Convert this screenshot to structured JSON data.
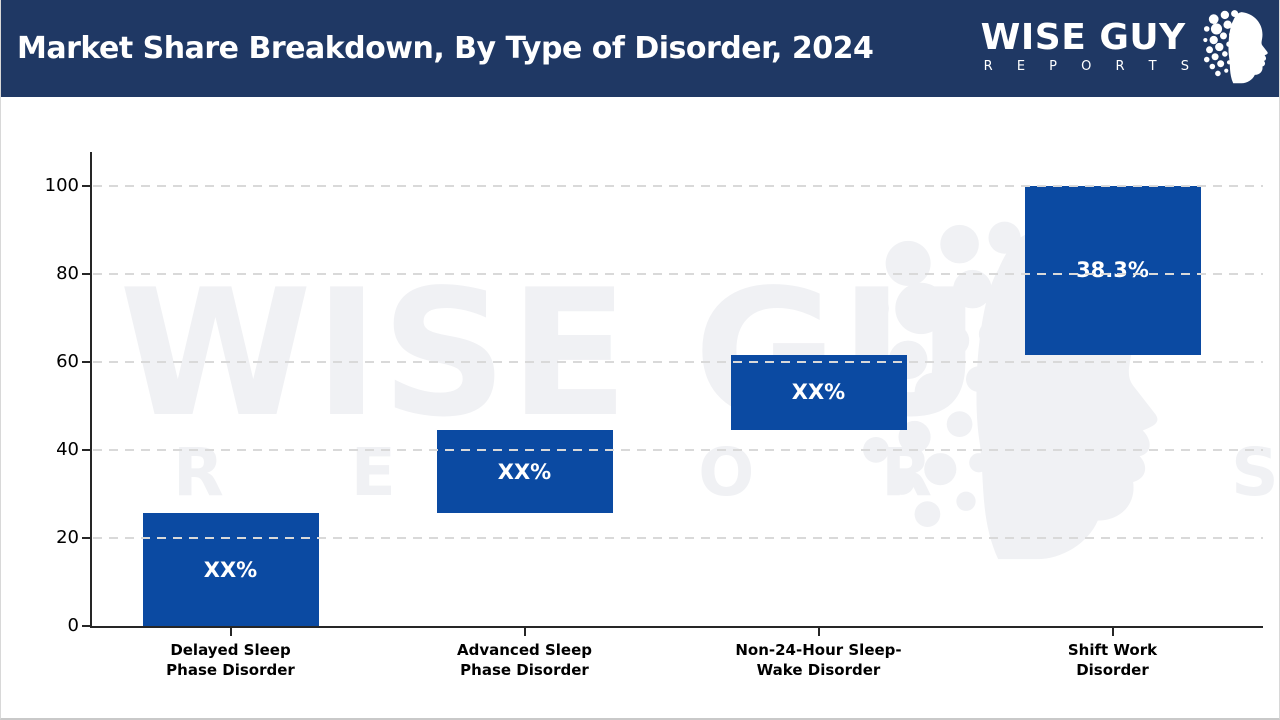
{
  "header": {
    "title": "Market Share Breakdown, By Type of Disorder, 2024",
    "logo": {
      "wordmark": "WISE GUY",
      "subtext": "R E P O R T S"
    }
  },
  "watermark": {
    "wordmark": "WISE GUY",
    "subtext": "R E P O R T S"
  },
  "colors": {
    "header_bg": "#1f3864",
    "bar_fill": "#0b4aa2",
    "bar_label": "#ffffff",
    "grid_line": "#d9d9d9",
    "axis_line": "#262626",
    "tick_label": "#000000",
    "watermark": "#f0f1f4"
  },
  "chart_data": {
    "type": "bar",
    "subtype": "floating-waterfall",
    "title": "Market Share Breakdown, By Type of Disorder, 2024",
    "categories": [
      [
        "Delayed Sleep",
        "Phase Disorder"
      ],
      [
        "Advanced Sleep",
        "Phase Disorder"
      ],
      [
        "Non-24-Hour Sleep-",
        "Wake Disorder"
      ],
      [
        "Shift Work",
        "Disorder"
      ]
    ],
    "bars": [
      {
        "start": 0,
        "end": 25.6,
        "value": 25.6,
        "label": "XX%"
      },
      {
        "start": 25.6,
        "end": 44.6,
        "value": 19.0,
        "label": "XX%"
      },
      {
        "start": 44.6,
        "end": 61.7,
        "value": 17.1,
        "label": "XX%"
      },
      {
        "start": 61.7,
        "end": 100,
        "value": 38.3,
        "label": "38.3%"
      }
    ],
    "xlabel": "",
    "ylabel": "",
    "ylim": [
      0,
      100
    ],
    "yticks": [
      0,
      20,
      40,
      60,
      80,
      100
    ],
    "grid": "horizontal-dashed",
    "grid_above_bars": true,
    "legend": "none"
  }
}
